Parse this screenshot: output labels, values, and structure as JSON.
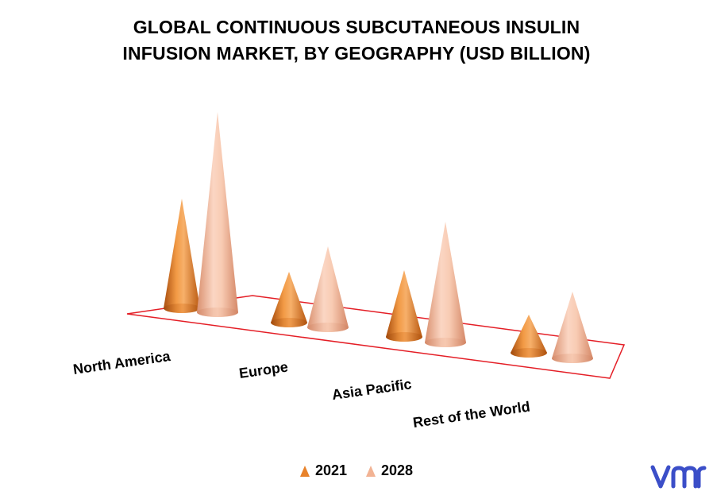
{
  "title": "GLOBAL CONTINUOUS SUBCUTANEOUS INSULIN\nINFUSION MARKET, BY GEOGRAPHY (USD BILLION)",
  "colors": {
    "2021": "#e8822a",
    "2028": "#f2b394",
    "floor": "#e41e26",
    "logo": "#3b4ec8"
  },
  "logo_text": "vmr",
  "legend": [
    {
      "label": "2021",
      "color": "#e8822a"
    },
    {
      "label": "2028",
      "color": "#f2b394"
    }
  ],
  "chart_data": {
    "type": "bar",
    "subtype": "3d-cone",
    "title": "GLOBAL CONTINUOUS SUBCUTANEOUS INSULIN INFUSION MARKET, BY GEOGRAPHY (USD BILLION)",
    "categories": [
      "North America",
      "Europe",
      "Asia Pacific",
      "Rest of the World"
    ],
    "series": [
      {
        "name": "2021",
        "values": [
          1.38,
          0.64,
          0.84,
          0.48
        ]
      },
      {
        "name": "2028",
        "values": [
          2.52,
          1.02,
          1.52,
          0.84
        ]
      }
    ],
    "ylim": [
      0,
      2.6
    ],
    "legend_position": "bottom",
    "grid": false
  }
}
